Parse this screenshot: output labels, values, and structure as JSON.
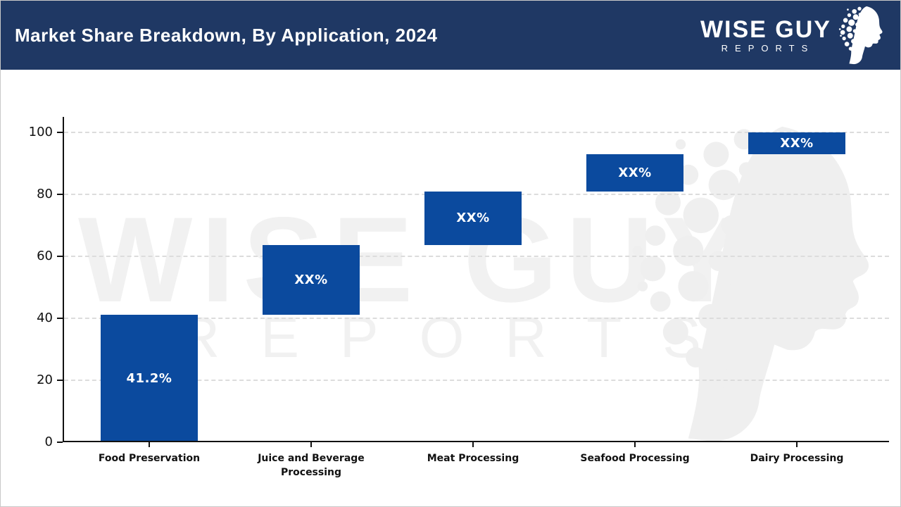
{
  "header": {
    "title": "Market Share Breakdown, By Application, 2024",
    "logo": {
      "brand": "WISE GUY",
      "sub": "REPORTS"
    }
  },
  "watermark": {
    "brand": "WISE GUY",
    "sub": "REPORTS"
  },
  "colors": {
    "header_bg": "#1f3864",
    "bar": "#0b4a9e",
    "bar_label_text": "#ffffff",
    "gridline": "#dcdcdc",
    "axis": "#111111",
    "watermark": "#f1f1f1"
  },
  "chart_data": {
    "type": "bar",
    "subtype": "waterfall",
    "title": "Market Share Breakdown, By Application, 2024",
    "categories": [
      "Food Preservation",
      "Juice and Beverage Processing",
      "Meat Processing",
      "Seafood Processing",
      "Dairy Processing"
    ],
    "segments": [
      {
        "category": "Food Preservation",
        "start": 0,
        "end": 41.2,
        "value": 41.2,
        "label": "41.2%"
      },
      {
        "category": "Juice and Beverage Processing",
        "start": 41.2,
        "end": 63.6,
        "value": 22.4,
        "label": "XX%"
      },
      {
        "category": "Meat Processing",
        "start": 63.6,
        "end": 81.0,
        "value": 17.4,
        "label": "XX%"
      },
      {
        "category": "Seafood Processing",
        "start": 81.0,
        "end": 92.9,
        "value": 11.9,
        "label": "XX%"
      },
      {
        "category": "Dairy Processing",
        "start": 92.9,
        "end": 100.0,
        "value": 7.1,
        "label": "XX%"
      }
    ],
    "xlabel": "",
    "ylabel": "",
    "ylim": [
      0,
      100
    ],
    "yticks": [
      0,
      20,
      40,
      60,
      80,
      100
    ],
    "grid": "horizontal-dashed",
    "legend": "none"
  }
}
